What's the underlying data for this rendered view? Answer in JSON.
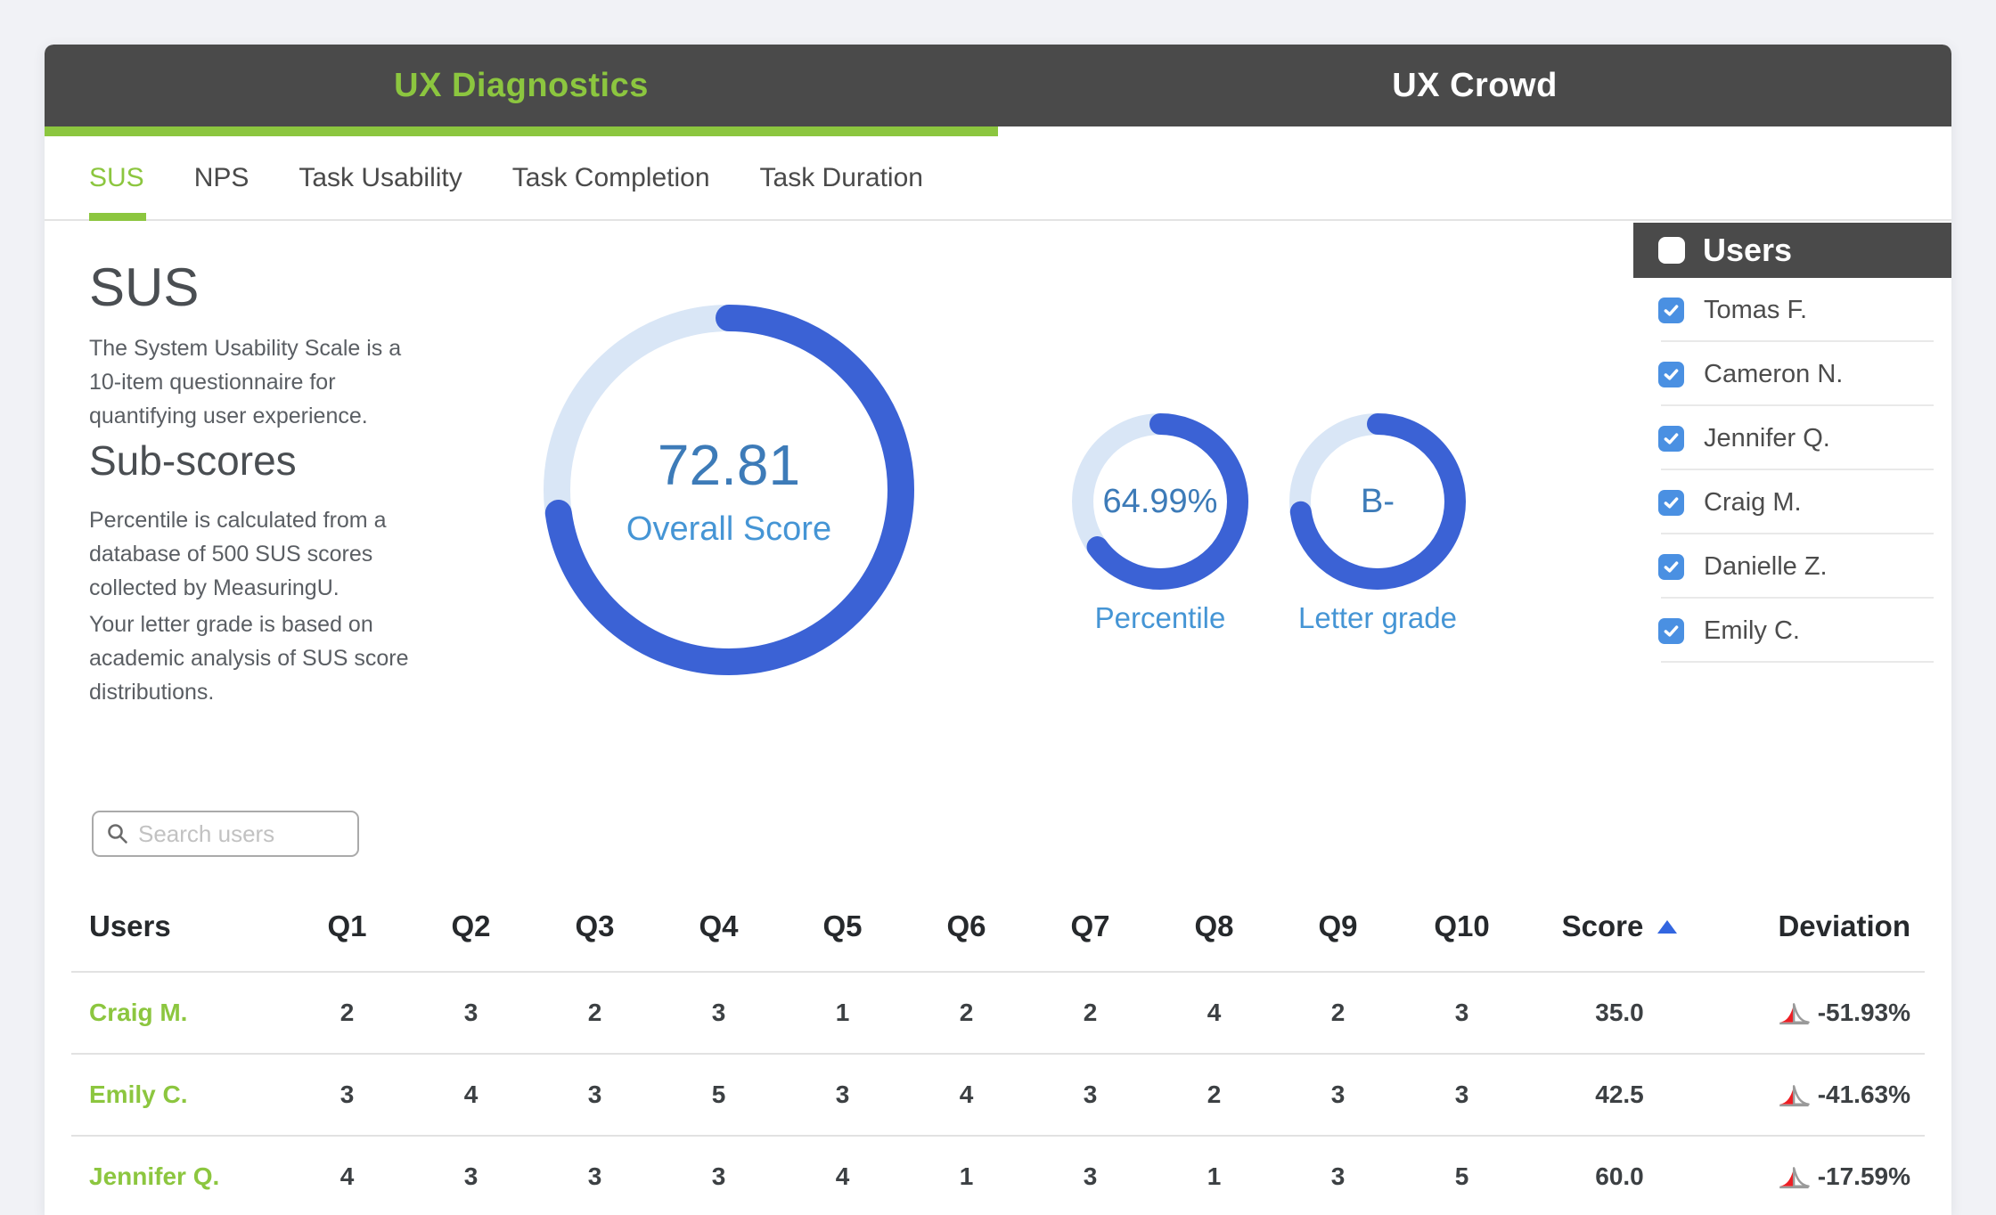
{
  "header": {
    "tabs": [
      {
        "label": "UX Diagnostics",
        "active": true
      },
      {
        "label": "UX Crowd",
        "active": false
      }
    ]
  },
  "subnav": {
    "items": [
      {
        "label": "SUS",
        "active": true
      },
      {
        "label": "NPS",
        "active": false
      },
      {
        "label": "Task Usability",
        "active": false
      },
      {
        "label": "Task Completion",
        "active": false
      },
      {
        "label": "Task Duration",
        "active": false
      }
    ]
  },
  "intro": {
    "title": "SUS",
    "paragraph1": "The System Usability Scale is a 10-item questionnaire for quantifying user experience.",
    "subtitle": "Sub-scores",
    "paragraph2": "Percentile is calculated from a database of 500 SUS scores collected by MeasuringU.",
    "paragraph3": "Your letter grade is based on academic analysis of SUS score distributions."
  },
  "chart_data": [
    {
      "type": "gauge",
      "title": "Overall Score",
      "value": 72.81,
      "display": "72.81",
      "max": 100,
      "percent_fill": 72.81
    },
    {
      "type": "gauge",
      "title": "Percentile",
      "value": 64.99,
      "display": "64.99%",
      "max": 100,
      "percent_fill": 64.99
    },
    {
      "type": "gauge",
      "title": "Letter grade",
      "value": "B-",
      "display": "B-",
      "percent_fill": 72.81
    }
  ],
  "users_panel": {
    "title": "Users",
    "header_checkbox_checked": false,
    "users": [
      {
        "name": "Tomas F.",
        "checked": true
      },
      {
        "name": "Cameron N.",
        "checked": true
      },
      {
        "name": "Jennifer Q.",
        "checked": true
      },
      {
        "name": "Craig M.",
        "checked": true
      },
      {
        "name": "Danielle Z.",
        "checked": true
      },
      {
        "name": "Emily C.",
        "checked": true
      }
    ]
  },
  "search": {
    "placeholder": "Search users"
  },
  "table": {
    "columns": [
      "Users",
      "Q1",
      "Q2",
      "Q3",
      "Q4",
      "Q5",
      "Q6",
      "Q7",
      "Q8",
      "Q9",
      "Q10",
      "Score",
      "Deviation"
    ],
    "sort": {
      "column": "Score",
      "direction": "asc"
    },
    "rows": [
      {
        "name": "Craig M.",
        "answers": [
          2,
          3,
          2,
          3,
          1,
          2,
          2,
          4,
          2,
          3
        ],
        "score": "35.0",
        "deviation": "-51.93%"
      },
      {
        "name": "Emily C.",
        "answers": [
          3,
          4,
          3,
          5,
          3,
          4,
          3,
          2,
          3,
          3
        ],
        "score": "42.5",
        "deviation": "-41.63%"
      },
      {
        "name": "Jennifer Q.",
        "answers": [
          4,
          3,
          3,
          3,
          4,
          1,
          3,
          1,
          3,
          5
        ],
        "score": "60.0",
        "deviation": "-17.59%"
      }
    ]
  },
  "colors": {
    "accent_green": "#8cc63f",
    "header_bg": "#4a4a4a",
    "arc_blue": "#3b62d5",
    "arc_track": "#d9e6f6",
    "gauge_value_blue": "#3d7bb8",
    "gauge_label_blue": "#4595d5",
    "checkbox_blue": "#4a90e2",
    "deviation_red": "#ee1f25",
    "sort_arrow_blue": "#3366e0"
  }
}
